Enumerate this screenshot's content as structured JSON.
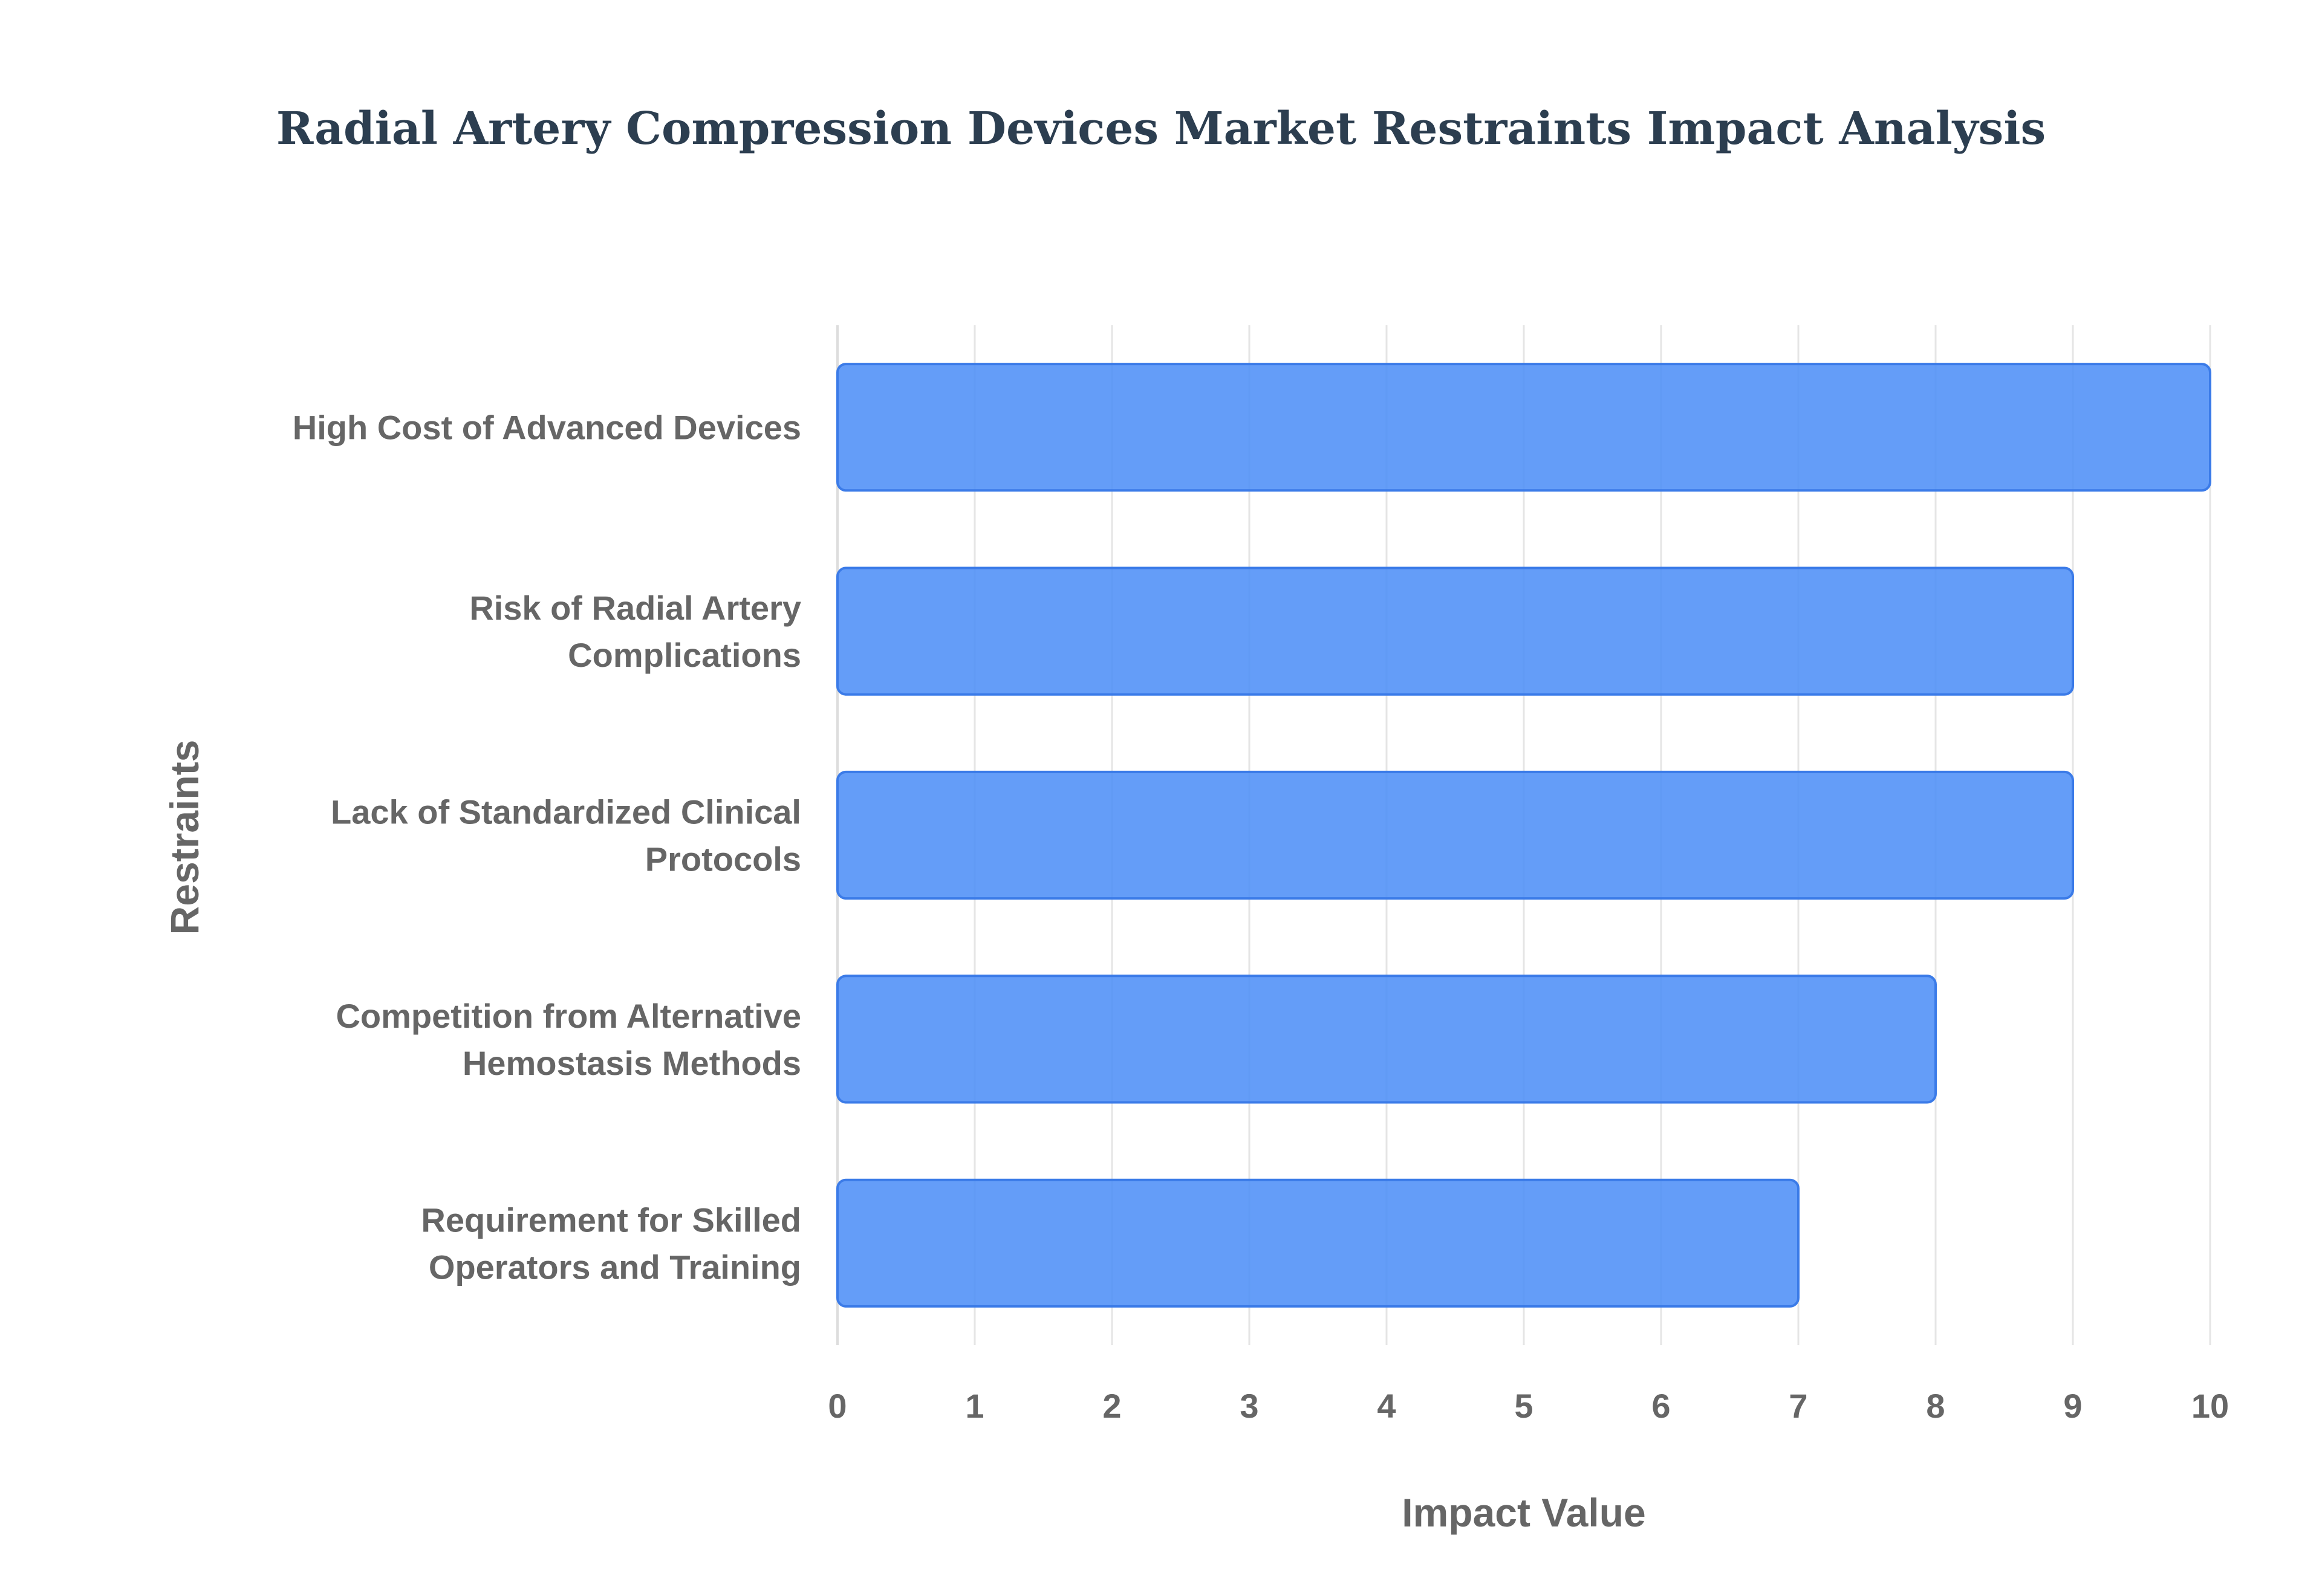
{
  "chart_data": {
    "type": "bar",
    "orientation": "horizontal",
    "title": "Radial Artery Compression Devices Market Restraints Impact Analysis",
    "xlabel": "Impact Value",
    "ylabel": "Restraints",
    "categories": [
      "High Cost of Advanced Devices",
      "Risk of Radial Artery Complications",
      "Lack of Standardized Clinical Protocols",
      "Competition from Alternative Hemostasis Methods",
      "Requirement for Skilled Operators and Training"
    ],
    "category_lines": [
      [
        "High Cost of Advanced Devices"
      ],
      [
        "Risk of Radial Artery",
        "Complications"
      ],
      [
        "Lack of Standardized Clinical",
        "Protocols"
      ],
      [
        "Competition from Alternative",
        "Hemostasis Methods"
      ],
      [
        "Requirement for Skilled",
        "Operators and Training"
      ]
    ],
    "values": [
      10,
      9,
      9,
      8,
      7
    ],
    "xlim": [
      0,
      10
    ],
    "xticks": [
      "0",
      "1",
      "2",
      "3",
      "4",
      "5",
      "6",
      "7",
      "8",
      "9",
      "10"
    ],
    "grid": true,
    "legend": "none",
    "bar_color": "#4f8ff7"
  }
}
